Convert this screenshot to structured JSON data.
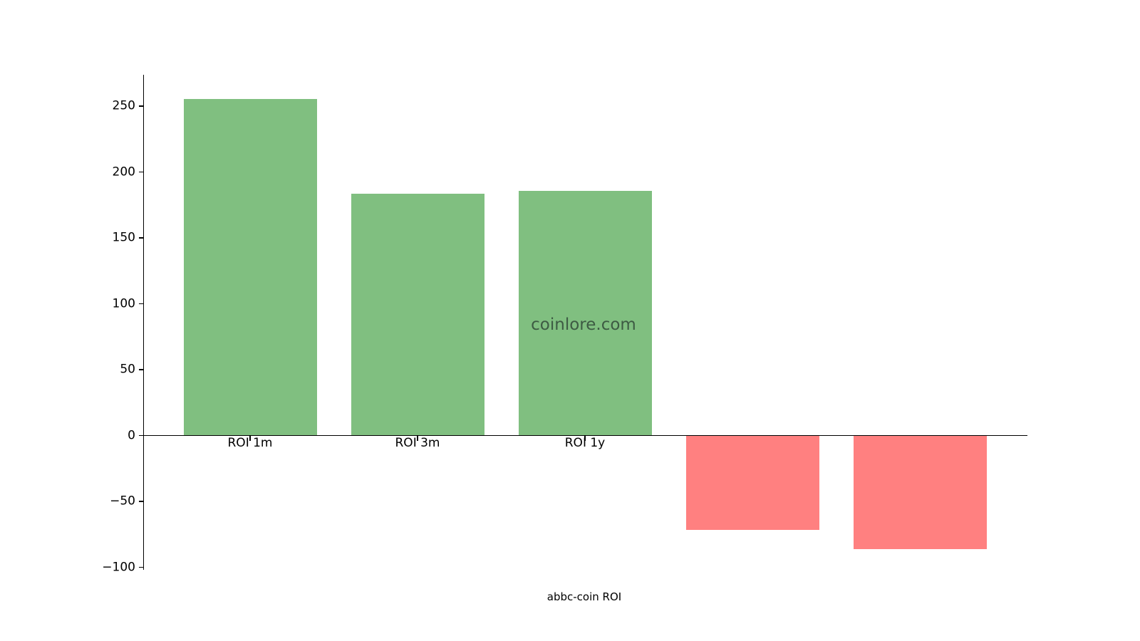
{
  "chart_data": {
    "type": "bar",
    "title": "abbc-coin ROI",
    "title_position": "bottom-center",
    "watermark": "coinlore.com",
    "categories": [
      "ROI 1m",
      "ROI 3m",
      "ROI 1y",
      "",
      ""
    ],
    "values": [
      255.4,
      183.3,
      185.5,
      -71.6,
      -85.7
    ],
    "bar_colors": [
      "#80bf80",
      "#80bf80",
      "#80bf80",
      "#ff8080",
      "#ff8080"
    ],
    "y_ticks": [
      {
        "label": "250",
        "value": 250
      },
      {
        "label": "200",
        "value": 200
      },
      {
        "label": "150",
        "value": 150
      },
      {
        "label": "100",
        "value": 100
      },
      {
        "label": "50",
        "value": 50
      },
      {
        "label": "0",
        "value": 0
      },
      {
        "label": "−50",
        "value": -50
      },
      {
        "label": "−100",
        "value": -100
      }
    ],
    "ylim": [
      -100,
      274
    ],
    "xlabel": "",
    "ylabel": "",
    "grid": false,
    "legend": false,
    "colors": {
      "positive": "#80bf80",
      "negative": "#ff8080",
      "axis": "#000000",
      "watermark_text": "#3d5b43",
      "background": "#ffffff"
    }
  }
}
